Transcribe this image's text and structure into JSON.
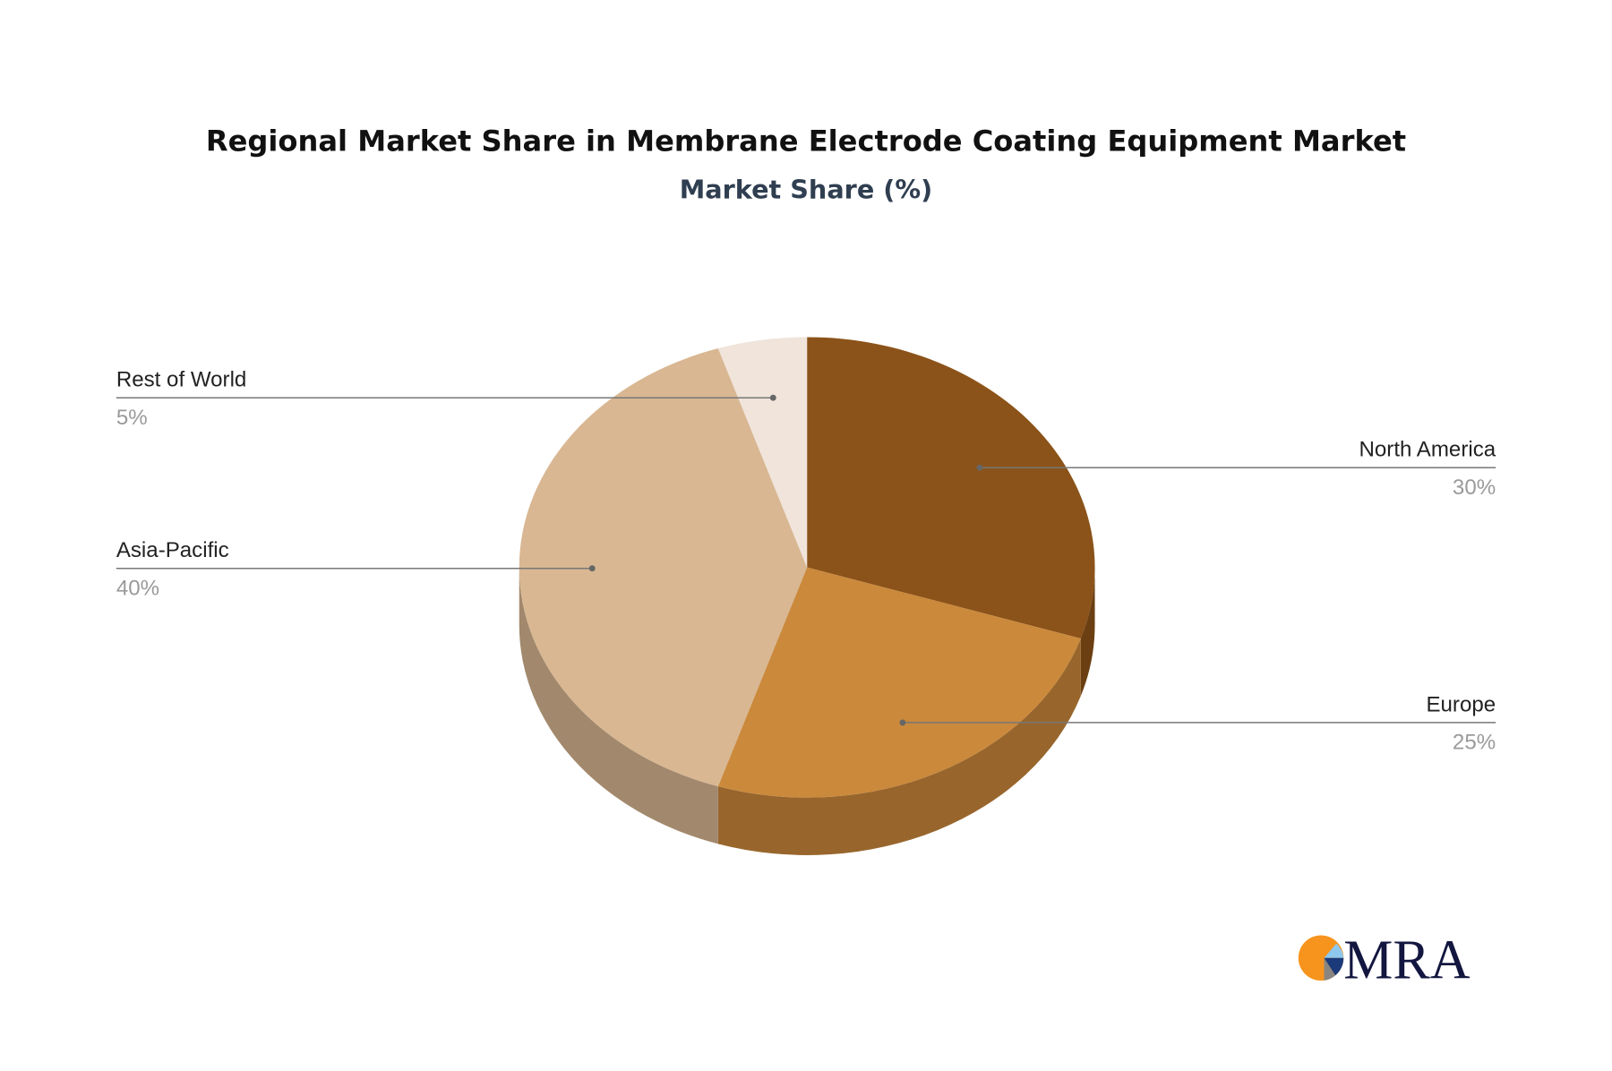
{
  "chart_data": {
    "type": "pie",
    "style": "3d",
    "title": "Regional Market Share in Membrane Electrode Coating Equipment Market",
    "subtitle": "Market Share (%)",
    "categories": [
      "North America",
      "Europe",
      "Asia-Pacific",
      "Rest of World"
    ],
    "values": [
      30,
      25,
      40,
      5
    ],
    "value_labels": [
      "30%",
      "25%",
      "40%",
      "5%"
    ],
    "colors": [
      "#8B5319",
      "#CB893C",
      "#D8B792",
      "#F0E4DB"
    ],
    "side_colors": [
      "#6B3F12",
      "#98662C",
      "#A2896D",
      "#C9BDB3"
    ],
    "legend": "none"
  },
  "logo": {
    "text": "MRA",
    "colors": [
      "#F7941D",
      "#8FC8EE",
      "#1B3A7A",
      "#8A8580",
      "#13163F"
    ]
  }
}
